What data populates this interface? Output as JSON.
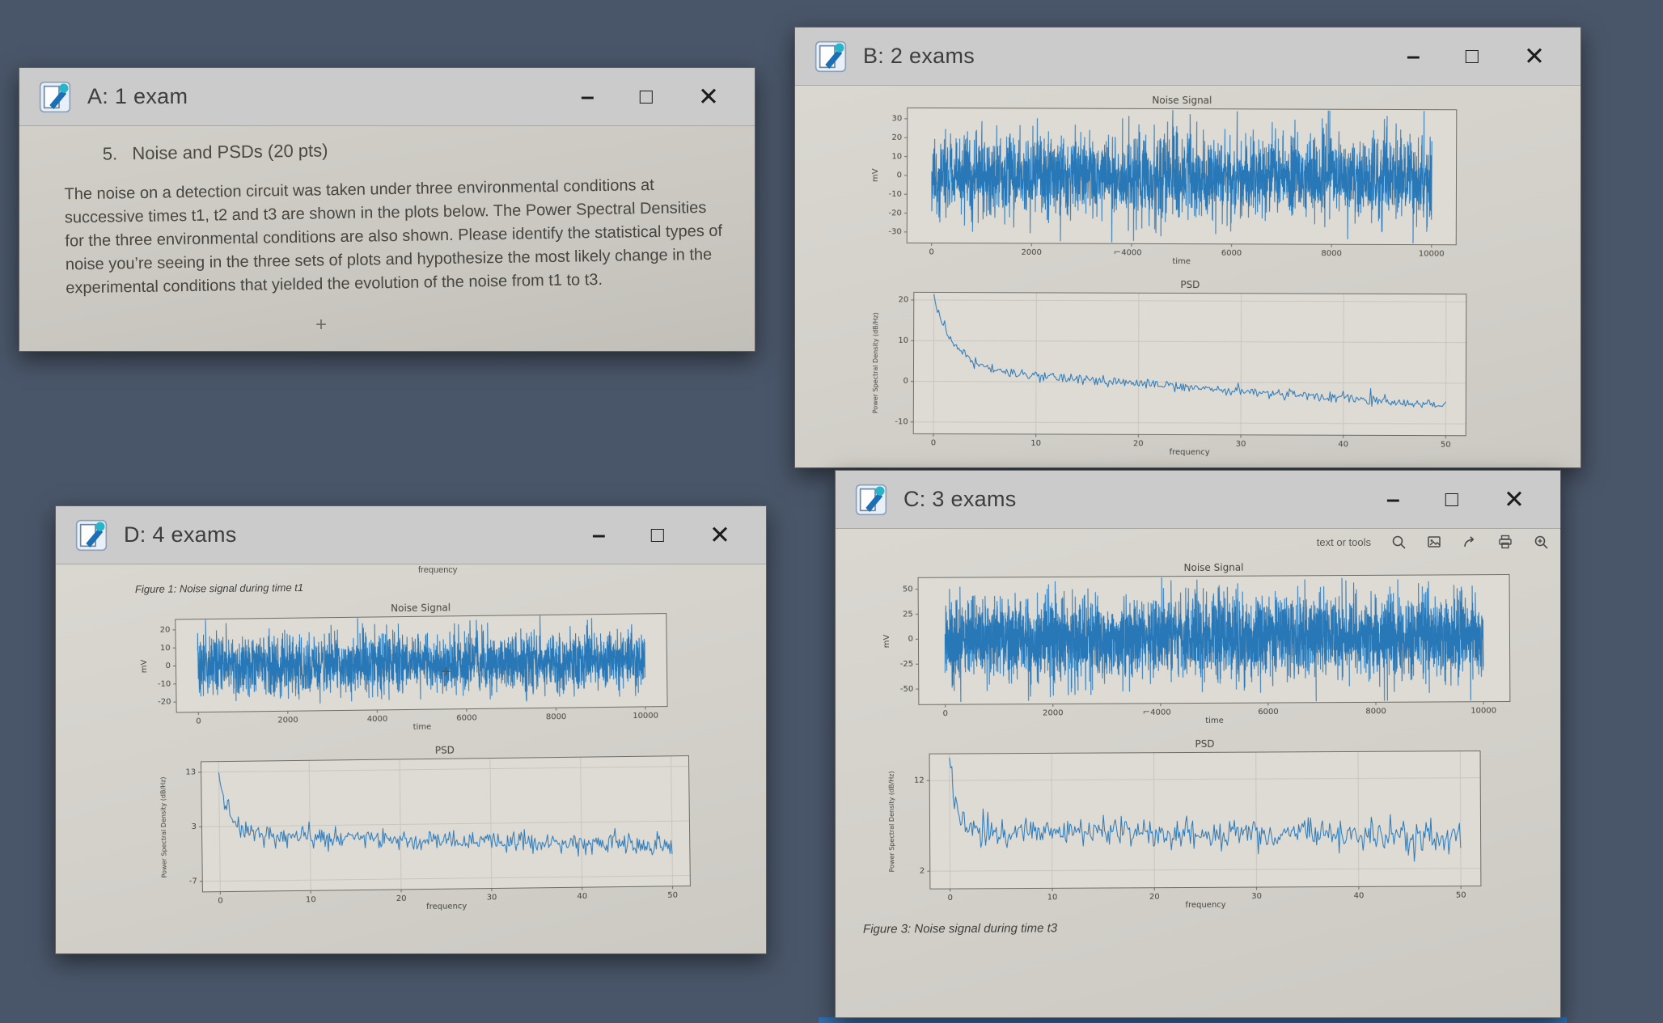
{
  "colors": {
    "desktop_bg": "#495669",
    "titlebar_bg": "#cbcbcb",
    "line_blue": "#2878b8",
    "paper": "#d4d1cb"
  },
  "window_controls": {
    "minimize": "–",
    "maximize": "□",
    "close": "✕"
  },
  "artifacts": {
    "crosshair": "+",
    "text_cursor": "⌐"
  },
  "windows": {
    "a": {
      "title": "A: 1 exam",
      "heading": "5.   Noise and PSDs (20 pts)",
      "body": "The noise on a detection circuit was taken under three environmental conditions at successive times t1, t2 and t3 are shown in the plots below. The Power Spectral Densities for the three environmental conditions are also shown. Please identify the statistical types of noise you’re seeing in the three sets of plots and hypothesize the most likely change in the experimental conditions that yielded the evolution of the noise from t1 to t3."
    },
    "b": {
      "title": "B: 2 exams"
    },
    "c": {
      "title": "C: 3 exams",
      "toolbar_hint": "text or tools",
      "toolbar_icons": [
        "search-icon",
        "save-image-icon",
        "share-icon",
        "print-icon",
        "zoom-in-icon"
      ],
      "caption": "Figure 3: Noise signal during time t3"
    },
    "d": {
      "title": "D: 4 exams",
      "top_axis_label": "frequency",
      "caption": "Figure 1: Noise signal during time t1"
    }
  },
  "chart_data": [
    {
      "window": "B",
      "type": "line",
      "title": "Noise Signal",
      "xlabel": "time",
      "ylabel": "mV",
      "xlim": [
        -500,
        10500
      ],
      "ylim": [
        -36,
        36
      ],
      "xticks": [
        0,
        2000,
        4000,
        6000,
        8000,
        10000
      ],
      "yticks": [
        30,
        20,
        10,
        0,
        -10,
        -20,
        -30
      ],
      "grid": false,
      "ml": 46,
      "line_color": "#2878b8",
      "signal": {
        "kind": "gaussian",
        "rms": 11,
        "n": 2600,
        "seed": 101,
        "description": "zero-mean noise, ~±25 mV typical, peaks ±30 mV over t=0..10000"
      },
      "cursor_artifact_near_x": 4000
    },
    {
      "window": "B",
      "type": "line",
      "title": "PSD",
      "xlabel": "frequency",
      "ylabel": "Power Spectral Density (dB/Hz)",
      "xlim": [
        -2,
        52
      ],
      "ylim": [
        -13,
        22
      ],
      "xticks": [
        0,
        10,
        20,
        30,
        40,
        50
      ],
      "yticks": [
        20,
        10,
        0,
        -10
      ],
      "grid": true,
      "ml": 54,
      "line_color": "#2878b8",
      "signal": {
        "kind": "psd",
        "base_start": 3,
        "base_end": -5.5,
        "spike": 20,
        "tau": 2.2,
        "noise": 1.2,
        "n": 430,
        "seed": 102,
        "description": "1/f-type PSD: ~20 dB/Hz at f~0 decaying to ~-5 dB/Hz at f=50"
      }
    },
    {
      "window": "C",
      "type": "line",
      "title": "Noise Signal",
      "xlabel": "time",
      "ylabel": "mV",
      "xlim": [
        -500,
        10500
      ],
      "ylim": [
        -66,
        62
      ],
      "xticks": [
        0,
        2000,
        4000,
        6000,
        8000,
        10000
      ],
      "yticks": [
        50,
        25,
        0,
        -25,
        -50
      ],
      "grid": false,
      "ml": 46,
      "line_color": "#2878b8",
      "signal": {
        "kind": "gaussian",
        "rms": 20,
        "n": 3800,
        "seed": 103,
        "description": "dense zero-mean noise, ~±50 mV typical, peaks ~±60 mV over t=0..10000"
      },
      "cursor_artifact_near_x": 4000
    },
    {
      "window": "C",
      "type": "line",
      "title": "PSD",
      "xlabel": "frequency",
      "ylabel": "Power Spectral Density (dB/Hz)",
      "xlim": [
        -2,
        52
      ],
      "ylim": [
        0,
        15
      ],
      "xticks": [
        0,
        10,
        20,
        30,
        40,
        50
      ],
      "yticks": [
        12,
        2
      ],
      "grid": true,
      "ml": 54,
      "line_color": "#2878b8",
      "signal": {
        "kind": "psd",
        "base_start": 6.5,
        "base_end": 5.5,
        "spike": 14,
        "tau": 0.7,
        "noise": 1.6,
        "n": 430,
        "seed": 104,
        "description": "flat (white-noise) PSD fluctuating ~4-9 dB/Hz with initial spike ~14"
      }
    },
    {
      "window": "D",
      "type": "line",
      "title": "Noise Signal",
      "xlabel": "time",
      "ylabel": "mV",
      "xlim": [
        -500,
        10500
      ],
      "ylim": [
        -26,
        26
      ],
      "xticks": [
        0,
        2000,
        4000,
        6000,
        8000,
        10000
      ],
      "yticks": [
        20,
        10,
        0,
        -10,
        -20
      ],
      "grid": false,
      "ml": 46,
      "line_color": "#2878b8",
      "signal": {
        "kind": "gaussian",
        "rms": 8,
        "n": 2400,
        "seed": 105,
        "description": "zero-mean noise, ~±18 mV typical, peaks ~±22 mV over t=0..10000"
      },
      "crosshair_artifact": true
    },
    {
      "window": "D",
      "type": "line",
      "title": "PSD",
      "xlabel": "frequency",
      "ylabel": "Power Spectral Density (dB/Hz)",
      "xlim": [
        -2,
        52
      ],
      "ylim": [
        -9,
        15
      ],
      "xticks": [
        0,
        10,
        20,
        30,
        40,
        50
      ],
      "yticks": [
        13,
        3,
        -7
      ],
      "grid": true,
      "ml": 54,
      "line_color": "#2878b8",
      "signal": {
        "kind": "psd",
        "base_start": 1.5,
        "base_end": -1.5,
        "spike": 13,
        "tau": 1.1,
        "noise": 1.7,
        "n": 430,
        "seed": 106,
        "description": "PSD: initial spike ~13 dB/Hz then roughly flat around 0 with ±3 fluctuation"
      }
    }
  ]
}
